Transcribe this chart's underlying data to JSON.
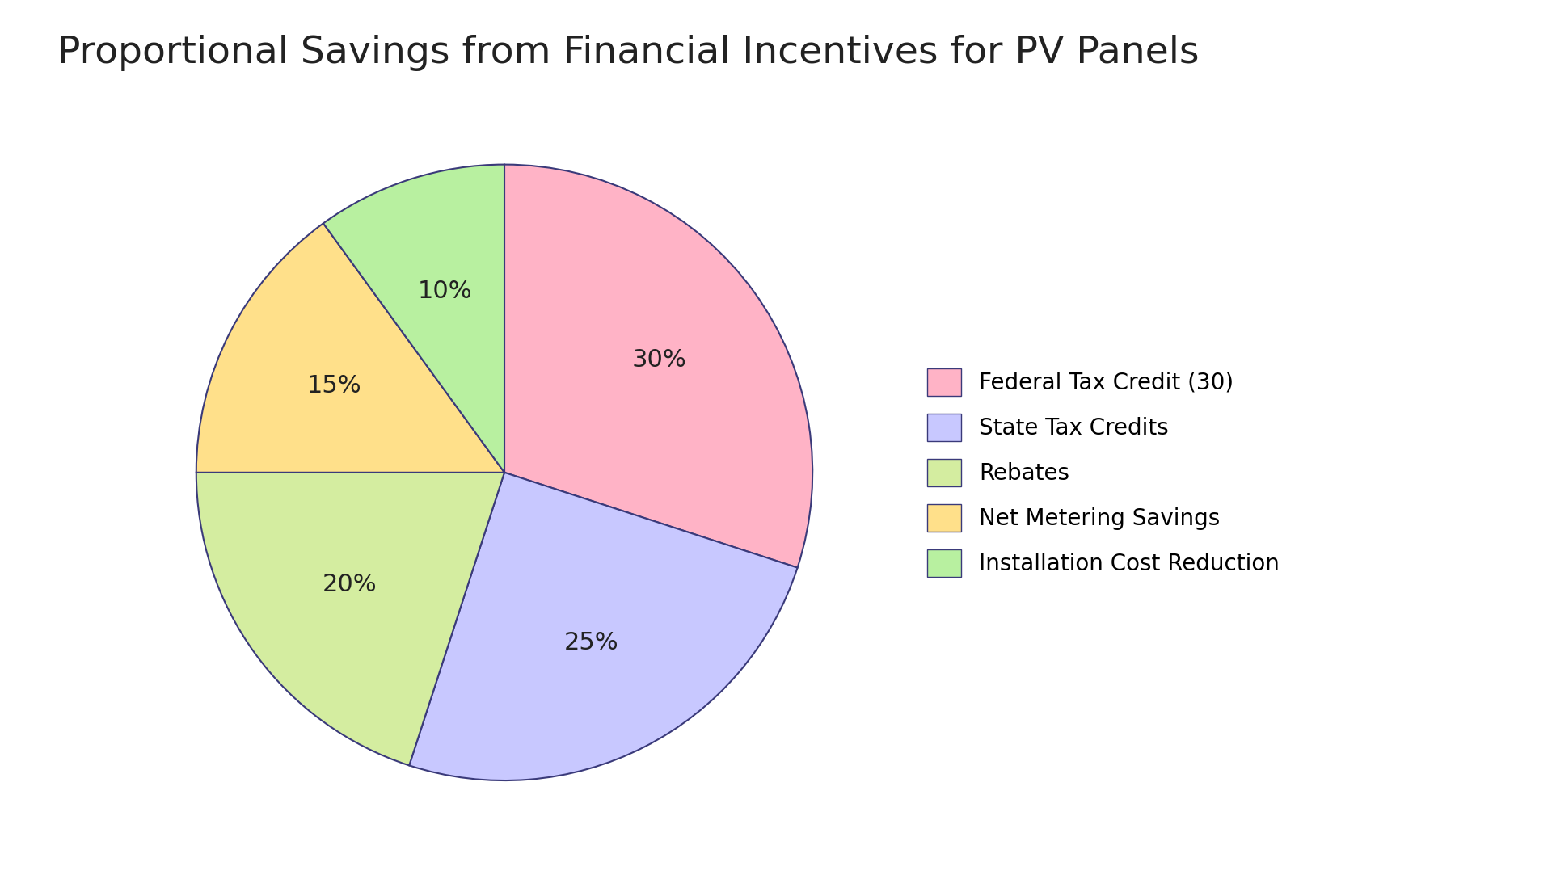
{
  "title": "Proportional Savings from Financial Incentives for PV Panels",
  "labels": [
    "Federal Tax Credit (30)",
    "State Tax Credits",
    "Rebates",
    "Net Metering Savings",
    "Installation Cost Reduction"
  ],
  "values": [
    30,
    25,
    20,
    15,
    10
  ],
  "colors": [
    "#FFB3C6",
    "#C8C8FF",
    "#D4EDA0",
    "#FFE08A",
    "#B8F0A0"
  ],
  "edge_color": "#3A3A7A",
  "edge_width": 1.5,
  "pct_labels": [
    "30%",
    "25%",
    "20%",
    "15%",
    "10%"
  ],
  "startangle": 90,
  "title_fontsize": 34,
  "pct_fontsize": 22,
  "legend_fontsize": 20,
  "background_color": "#FFFFFF"
}
